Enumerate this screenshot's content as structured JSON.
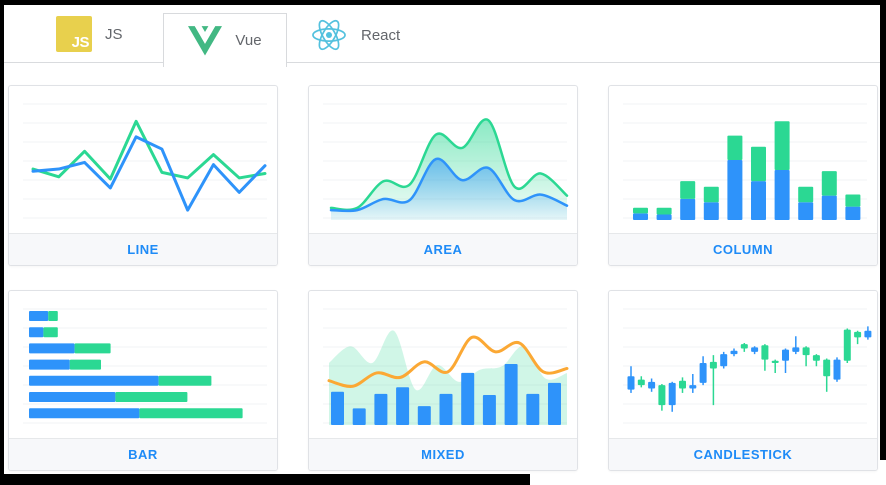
{
  "tabs": [
    {
      "label": "JS",
      "badge": "JS",
      "active": false
    },
    {
      "label": "Vue",
      "active": true
    },
    {
      "label": "React",
      "active": false
    }
  ],
  "colors": {
    "blue": "#2E93FA",
    "green": "#2BD893",
    "orange": "#FBA834",
    "mixed_area_fill": "rgba(43,216,147,0.22)",
    "label_blue": "#1E8BF7",
    "js_yellow": "#E8D04D",
    "vue_green": "#42B883",
    "react_blue": "#53C1DE",
    "grid": "#F2F3F5"
  },
  "cards": [
    {
      "label": "LINE",
      "chart_data": {
        "type": "line",
        "title": "LINE",
        "grid": true,
        "ylim": [
          0,
          100
        ],
        "series": [
          {
            "name": "green",
            "color": "#2BD893",
            "values": [
              45,
              38,
              61,
              36,
              88,
              42,
              37,
              58,
              37,
              41
            ]
          },
          {
            "name": "blue",
            "color": "#2E93FA",
            "values": [
              43,
              45,
              51,
              28,
              74,
              63,
              8,
              49,
              24,
              48
            ]
          }
        ]
      }
    },
    {
      "label": "AREA",
      "chart_data": {
        "type": "area",
        "title": "AREA",
        "grid": true,
        "ylim": [
          0,
          100
        ],
        "series": [
          {
            "name": "green",
            "color": "#2BD893",
            "values": [
              10,
              10,
              34,
              31,
              76,
              64,
              89,
              29,
              41,
              21
            ]
          },
          {
            "name": "blue",
            "color": "#2E93FA",
            "values": [
              8,
              8,
              18,
              17,
              54,
              35,
              46,
              17,
              22,
              12
            ]
          }
        ]
      }
    },
    {
      "label": "COLUMN",
      "chart_data": {
        "type": "column",
        "title": "COLUMN",
        "grid": true,
        "ylim": [
          0,
          100
        ],
        "stacked": true,
        "series": [
          {
            "name": "blue",
            "color": "#2E93FA",
            "values": [
              6,
              5,
              19,
              16,
              54,
              35,
              45,
              16,
              22,
              12
            ]
          },
          {
            "name": "green",
            "color": "#2BD893",
            "values": [
              5,
              6,
              16,
              14,
              22,
              31,
              44,
              14,
              22,
              11
            ]
          }
        ]
      }
    },
    {
      "label": "BAR",
      "chart_data": {
        "type": "bar",
        "title": "BAR",
        "grid": true,
        "xlim": [
          0,
          100
        ],
        "stacked": true,
        "series": [
          {
            "name": "blue",
            "color": "#2E93FA",
            "values": [
              8,
              6,
              19,
              17,
              54,
              36,
              46
            ]
          },
          {
            "name": "green",
            "color": "#2BD893",
            "values": [
              4,
              6,
              15,
              13,
              22,
              30,
              43
            ]
          }
        ]
      }
    },
    {
      "label": "MIXED",
      "chart_data": {
        "type": "mixed",
        "title": "MIXED",
        "grid": true,
        "ylim": [
          0,
          100
        ],
        "area": {
          "name": "green-area",
          "fill": "rgba(43,216,147,0.22)",
          "values": [
            55,
            70,
            55,
            84,
            31,
            53,
            38,
            49,
            52,
            70,
            41,
            46
          ]
        },
        "columns": {
          "name": "blue-columns",
          "color": "#2E93FA",
          "values": [
            30,
            15,
            28,
            34,
            17,
            28,
            47,
            27,
            55,
            28,
            38
          ]
        },
        "line": {
          "name": "orange-line",
          "color": "#FBA834",
          "values": [
            39,
            34,
            46,
            42,
            56,
            47,
            78,
            65,
            73,
            47,
            50
          ]
        }
      }
    },
    {
      "label": "CANDLESTICK",
      "chart_data": {
        "type": "candlestick",
        "title": "CANDLESTICK",
        "grid": true,
        "ylim": [
          0,
          100
        ],
        "up_color": "#2BD893",
        "down_color": "#2E93FA",
        "candles_ohlc": [
          [
            43,
            52,
            28,
            31
          ],
          [
            35,
            43,
            33,
            40
          ],
          [
            38,
            41,
            29,
            32
          ],
          [
            17,
            36,
            12,
            35
          ],
          [
            37,
            38,
            11,
            17
          ],
          [
            32,
            42,
            28,
            39
          ],
          [
            35,
            45,
            28,
            32
          ],
          [
            55,
            61,
            35,
            37
          ],
          [
            50,
            62,
            17,
            56
          ],
          [
            63,
            65,
            50,
            52
          ],
          [
            66,
            68,
            61,
            63
          ],
          [
            68,
            73,
            65,
            72
          ],
          [
            69,
            70,
            63,
            65
          ],
          [
            58,
            72,
            48,
            71
          ],
          [
            55,
            58,
            46,
            57
          ],
          [
            67,
            68,
            46,
            57
          ],
          [
            69,
            79,
            63,
            65
          ],
          [
            62,
            70,
            52,
            69
          ],
          [
            57,
            63,
            52,
            62
          ],
          [
            43,
            59,
            29,
            58
          ],
          [
            58,
            60,
            38,
            40
          ],
          [
            57,
            86,
            55,
            85
          ],
          [
            78,
            84,
            72,
            83
          ],
          [
            84,
            88,
            76,
            78
          ]
        ]
      }
    }
  ]
}
